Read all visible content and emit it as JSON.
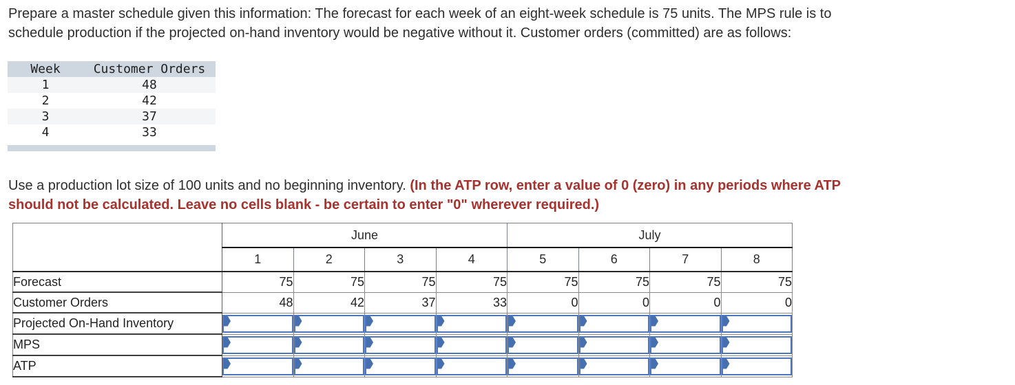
{
  "colors": {
    "header-blue": "#83a9dc",
    "input-border": "#4e76bd",
    "flag-blue": "#466fb0",
    "emphasis-red": "#a8322d",
    "band": "#ced6e0"
  },
  "intro": {
    "line1": "Prepare a master schedule given this information: The forecast for each week of an eight-week schedule is 75 units. The MPS rule is to",
    "line2": "schedule production if the projected on-hand inventory would be negative without it. Customer orders (committed) are as follows:"
  },
  "orders_table": {
    "headers": [
      "Week",
      "Customer Orders"
    ],
    "rows": [
      {
        "week": "1",
        "orders": "48"
      },
      {
        "week": "2",
        "orders": "42"
      },
      {
        "week": "3",
        "orders": "37"
      },
      {
        "week": "4",
        "orders": "33"
      }
    ]
  },
  "instruction": {
    "normal": "Use a production lot size of 100 units and no beginning inventory. ",
    "emphasis_line1": "(In the ATP row, enter a value of 0 (zero) in any periods where ATP",
    "emphasis_line2": "should not be calculated. Leave no cells blank - be certain to enter \"0\" wherever required.)"
  },
  "mps_table": {
    "month_groups": [
      {
        "label": "June",
        "weeks": [
          "1",
          "2",
          "3",
          "4"
        ]
      },
      {
        "label": "July",
        "weeks": [
          "5",
          "6",
          "7",
          "8"
        ]
      }
    ],
    "rows": [
      {
        "label": "Forecast",
        "type": "static",
        "values": [
          "75",
          "75",
          "75",
          "75",
          "75",
          "75",
          "75",
          "75"
        ]
      },
      {
        "label": "Customer Orders",
        "type": "static",
        "values": [
          "48",
          "42",
          "37",
          "33",
          "0",
          "0",
          "0",
          "0"
        ]
      },
      {
        "label": "Projected On-Hand Inventory",
        "type": "input",
        "values": [
          "",
          "",
          "",
          "",
          "",
          "",
          "",
          ""
        ]
      },
      {
        "label": "MPS",
        "type": "input",
        "values": [
          "",
          "",
          "",
          "",
          "",
          "",
          "",
          ""
        ]
      },
      {
        "label": "ATP",
        "type": "input",
        "values": [
          "",
          "",
          "",
          "",
          "",
          "",
          "",
          ""
        ]
      }
    ]
  }
}
